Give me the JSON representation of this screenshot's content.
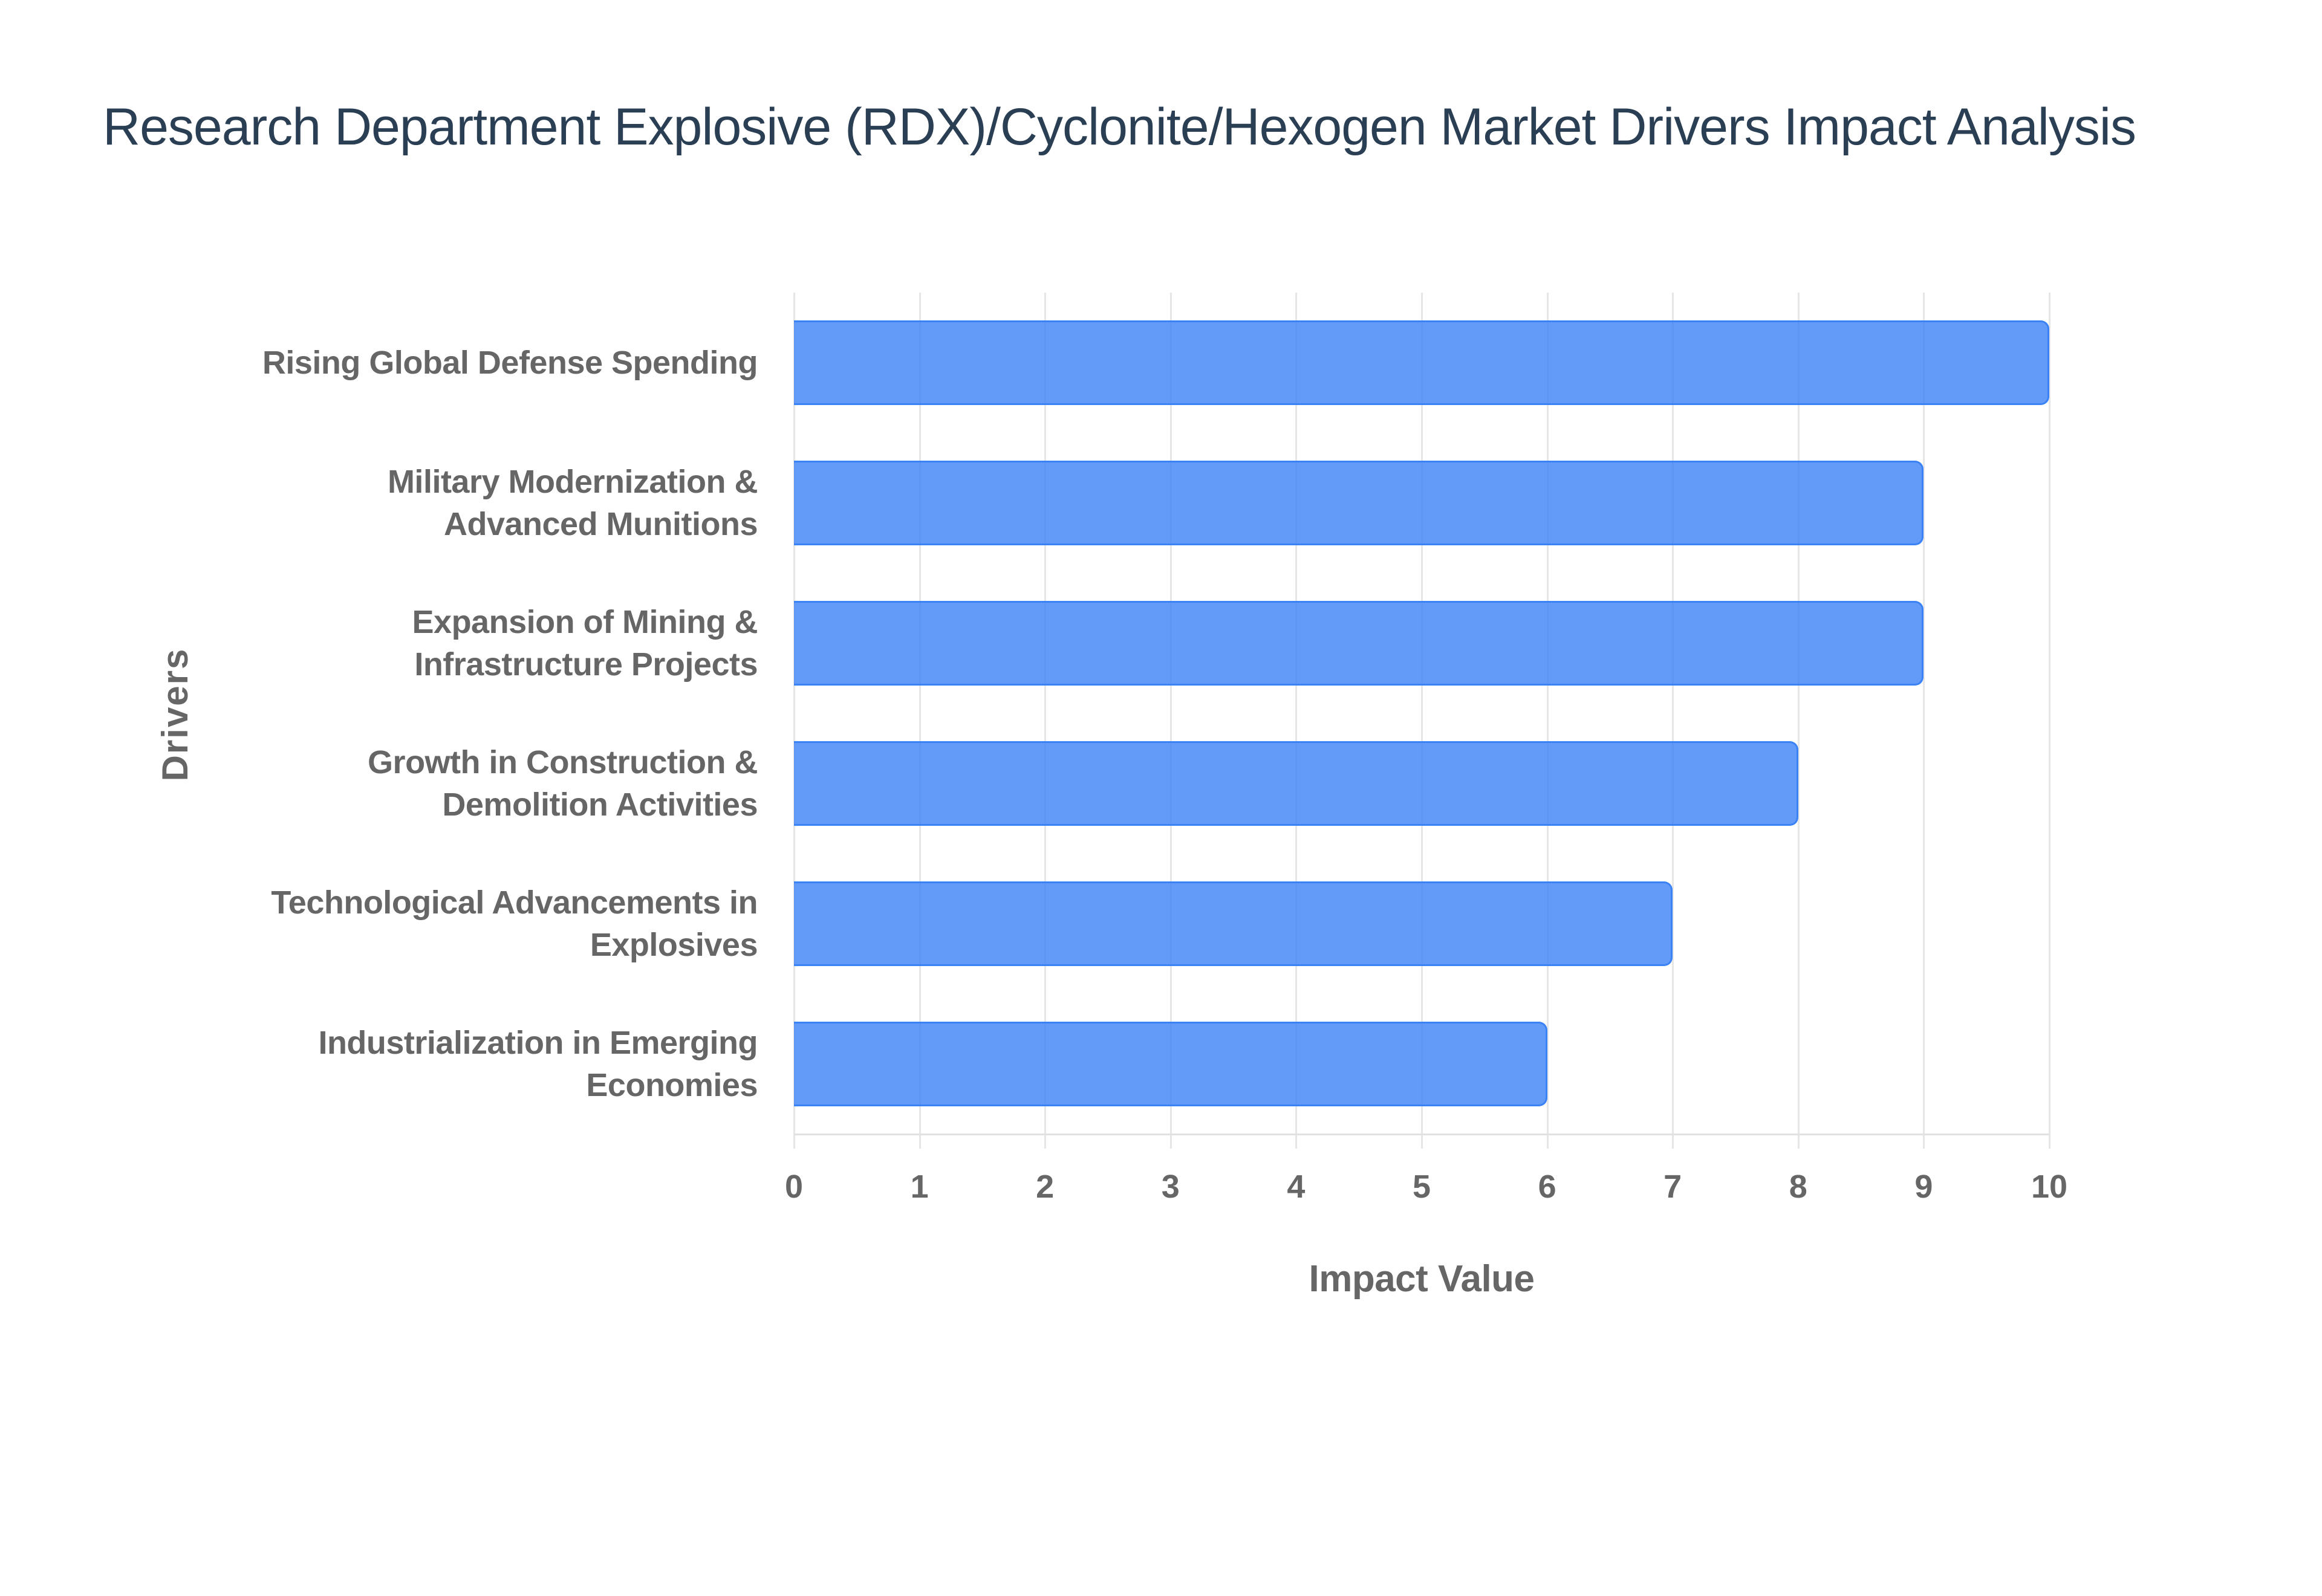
{
  "title": "Research Department Explosive (RDX)/Cyclonite/Hexogen Market Drivers Impact Analysis",
  "axes": {
    "x_title": "Impact Value",
    "y_title": "Drivers",
    "x_ticks": [
      "0",
      "1",
      "2",
      "3",
      "4",
      "5",
      "6",
      "7",
      "8",
      "9",
      "10"
    ]
  },
  "colors": {
    "bar_fill": "#6299f8",
    "bar_border": "#3b82f6",
    "title": "#2a3f54",
    "axis_text": "#666666",
    "grid": "#e6e6e6"
  },
  "categories": [
    {
      "line1": "Rising Global Defense Spending",
      "line2": "",
      "value": 10
    },
    {
      "line1": "Military Modernization &",
      "line2": "Advanced Munitions",
      "value": 9
    },
    {
      "line1": "Expansion of Mining &",
      "line2": "Infrastructure Projects",
      "value": 9
    },
    {
      "line1": "Growth in Construction &",
      "line2": "Demolition Activities",
      "value": 8
    },
    {
      "line1": "Technological Advancements in",
      "line2": "Explosives",
      "value": 7
    },
    {
      "line1": "Industrialization in Emerging",
      "line2": "Economies",
      "value": 6
    }
  ],
  "chart_data": {
    "type": "bar",
    "orientation": "horizontal",
    "title": "Research Department Explosive (RDX)/Cyclonite/Hexogen Market Drivers Impact Analysis",
    "xlabel": "Impact Value",
    "ylabel": "Drivers",
    "categories": [
      "Rising Global Defense Spending",
      "Military Modernization & Advanced Munitions",
      "Expansion of Mining & Infrastructure Projects",
      "Growth in Construction & Demolition Activities",
      "Technological Advancements in Explosives",
      "Industrialization in Emerging Economies"
    ],
    "values": [
      10,
      9,
      9,
      8,
      7,
      6
    ],
    "xlim": [
      0,
      10
    ],
    "x_ticks": [
      0,
      1,
      2,
      3,
      4,
      5,
      6,
      7,
      8,
      9,
      10
    ],
    "grid": {
      "vertical": true,
      "horizontal": false
    },
    "legend": null,
    "bar_color": "#3b82f6"
  }
}
